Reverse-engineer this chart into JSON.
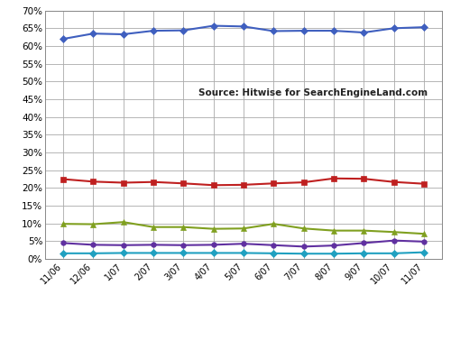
{
  "x_labels": [
    "11/06",
    "12/06",
    "1/07",
    "2/07",
    "3/07",
    "4/07",
    "5/07",
    "6/07",
    "7/07",
    "8/07",
    "9/07",
    "10/07",
    "11/07"
  ],
  "google": [
    62.0,
    63.5,
    63.3,
    64.3,
    64.4,
    65.7,
    65.5,
    64.2,
    64.3,
    64.3,
    63.8,
    65.0,
    65.3
  ],
  "yahoo": [
    22.5,
    21.8,
    21.5,
    21.7,
    21.3,
    20.8,
    20.9,
    21.3,
    21.6,
    22.7,
    22.6,
    21.7,
    21.2
  ],
  "microsoft": [
    9.9,
    9.8,
    10.4,
    9.0,
    9.0,
    8.5,
    8.6,
    9.9,
    8.6,
    8.0,
    8.0,
    7.6,
    7.1
  ],
  "ask": [
    4.5,
    4.0,
    3.9,
    4.0,
    3.9,
    4.0,
    4.3,
    3.9,
    3.5,
    3.8,
    4.5,
    5.2,
    4.9
  ],
  "others": [
    1.6,
    1.6,
    1.7,
    1.7,
    1.7,
    1.7,
    1.7,
    1.6,
    1.5,
    1.5,
    1.6,
    1.6,
    1.9
  ],
  "google_color": "#3f5fbf",
  "yahoo_color": "#bf2020",
  "microsoft_color": "#80a020",
  "ask_color": "#6030a0",
  "others_color": "#20a0c0",
  "annotation": "Source: Hitwise for SearchEngineLand.com",
  "bg_color": "#ffffff",
  "grid_color": "#aaaaaa",
  "ylim": [
    0,
    70
  ],
  "yticks": [
    0,
    5,
    10,
    15,
    20,
    25,
    30,
    35,
    40,
    45,
    50,
    55,
    60,
    65,
    70
  ]
}
